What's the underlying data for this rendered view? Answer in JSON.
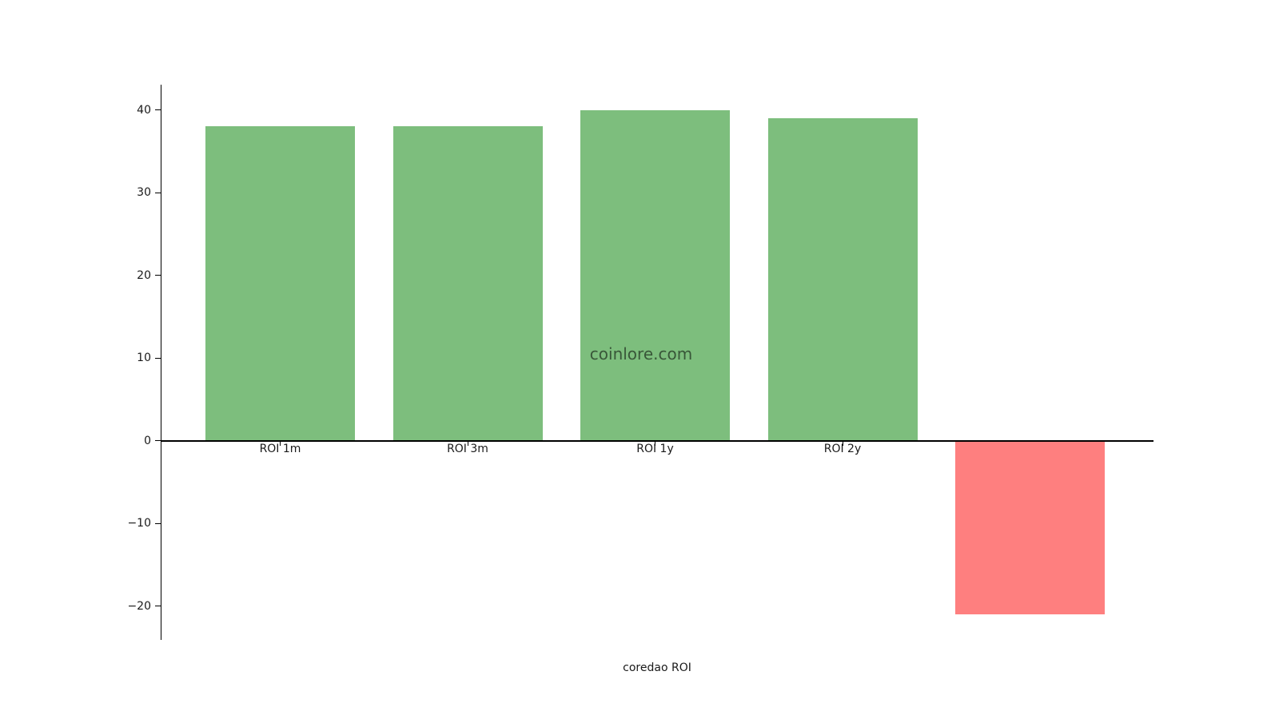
{
  "chart_data": {
    "type": "bar",
    "title": "",
    "watermark": "coinlore.com",
    "xlabel": "coredao ROI",
    "ylabel": "",
    "categories": [
      "ROI 1m",
      "ROI 3m",
      "ROI 1y",
      "ROI 2y",
      ""
    ],
    "values": [
      38,
      38,
      40,
      39,
      -21
    ],
    "yticks": [
      40,
      30,
      20,
      10,
      0,
      -10,
      -20
    ],
    "ylim": [
      -24,
      43
    ],
    "grid": false,
    "legend": false,
    "colors": {
      "positive_bar": "#7dbe7d",
      "negative_bar": "#fe7f7f",
      "axis": "#000000",
      "tick_label": "#1a1a1a",
      "watermark": "rgba(0,0,0,0.55)"
    }
  }
}
